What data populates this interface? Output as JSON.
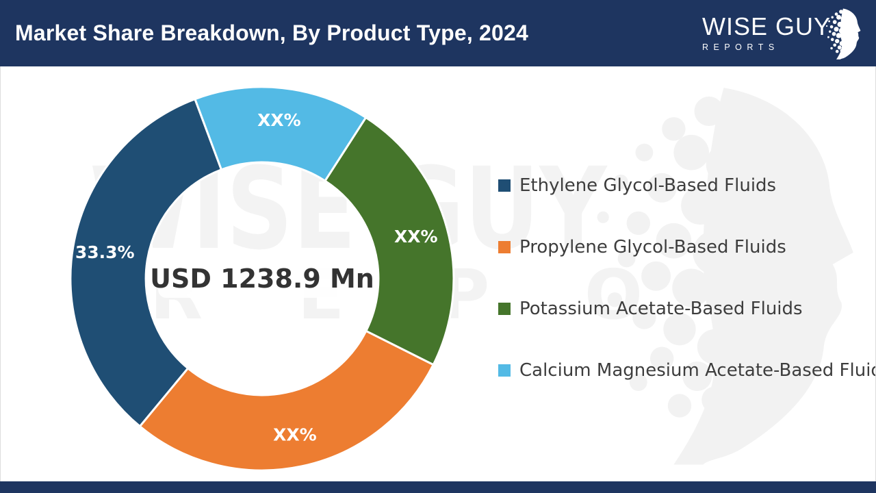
{
  "header": {
    "title": "Market Share Breakdown, By Product Type, 2024",
    "logo": {
      "line1": "WISE GUY",
      "line2": "REPORTS"
    }
  },
  "watermark": {
    "line1": "WISE GUY",
    "line2": "R E P O R T S"
  },
  "chart_data": {
    "type": "pie",
    "subtype": "donut",
    "title": "Market Share Breakdown, By Product Type, 2024",
    "center_label": "USD 1238.9 Mn",
    "start_angle_deg": 110.5,
    "direction": "counterclockwise",
    "legend_position": "right",
    "segments": [
      {
        "name": "Ethylene Glycol-Based Fluids",
        "label": "33.3%",
        "value_pct": 33.3,
        "color": "#1f4e74"
      },
      {
        "name": "Propylene Glycol-Based Fluids",
        "label": "XX%",
        "value_pct": 28.6,
        "color": "#ed7d31"
      },
      {
        "name": "Potassium Acetate-Based Fluids",
        "label": "XX%",
        "value_pct": 23.3,
        "color": "#45752b"
      },
      {
        "name": "Calcium Magnesium Acetate-Based Fluids",
        "label": "XX%",
        "value_pct": 14.8,
        "color": "#53bae5"
      }
    ]
  },
  "colors": {
    "header_bg": "#1e3560",
    "footer_bg": "#1e3560",
    "title_text": "#ffffff",
    "center_text": "#333333",
    "segment_label_text": "#ffffff",
    "legend_text": "#3d3d3d",
    "watermark": "#f3f3f3"
  }
}
